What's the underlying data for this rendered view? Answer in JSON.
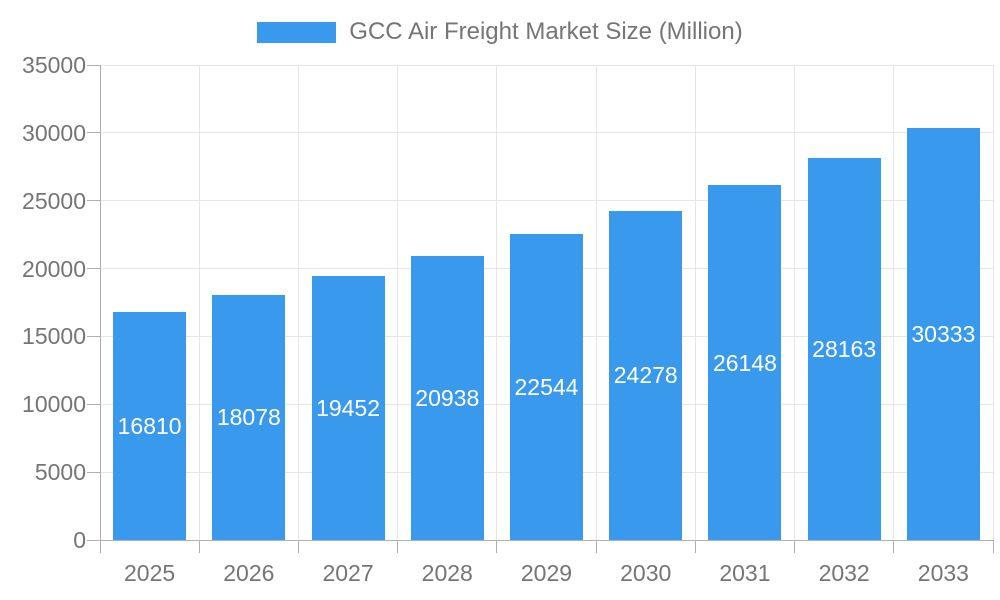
{
  "chart_data": {
    "type": "bar",
    "title": "GCC Air Freight Market Size (Million)",
    "categories": [
      "2025",
      "2026",
      "2027",
      "2028",
      "2029",
      "2030",
      "2031",
      "2032",
      "2033"
    ],
    "values": [
      16810,
      18078,
      19452,
      20938,
      22544,
      24278,
      26148,
      28163,
      30333
    ],
    "series_name": "GCC Air Freight Market Size (Million)",
    "xlabel": "",
    "ylabel": "",
    "ylim": [
      0,
      35000
    ],
    "yticks": [
      0,
      5000,
      10000,
      15000,
      20000,
      25000,
      30000,
      35000
    ],
    "grid": "horizontal and vertical gridlines on",
    "legend_position": "top-center",
    "bar_labels": "values shown in white, centered inside each bar"
  },
  "colors": {
    "bar": "#3999EC",
    "bar_label": "#FFFFFF",
    "grid": "#E6E6E6",
    "axis": "#B0B0B0",
    "tick_label": "#757575",
    "legend_text": "#757575",
    "background": "#FFFFFF"
  }
}
